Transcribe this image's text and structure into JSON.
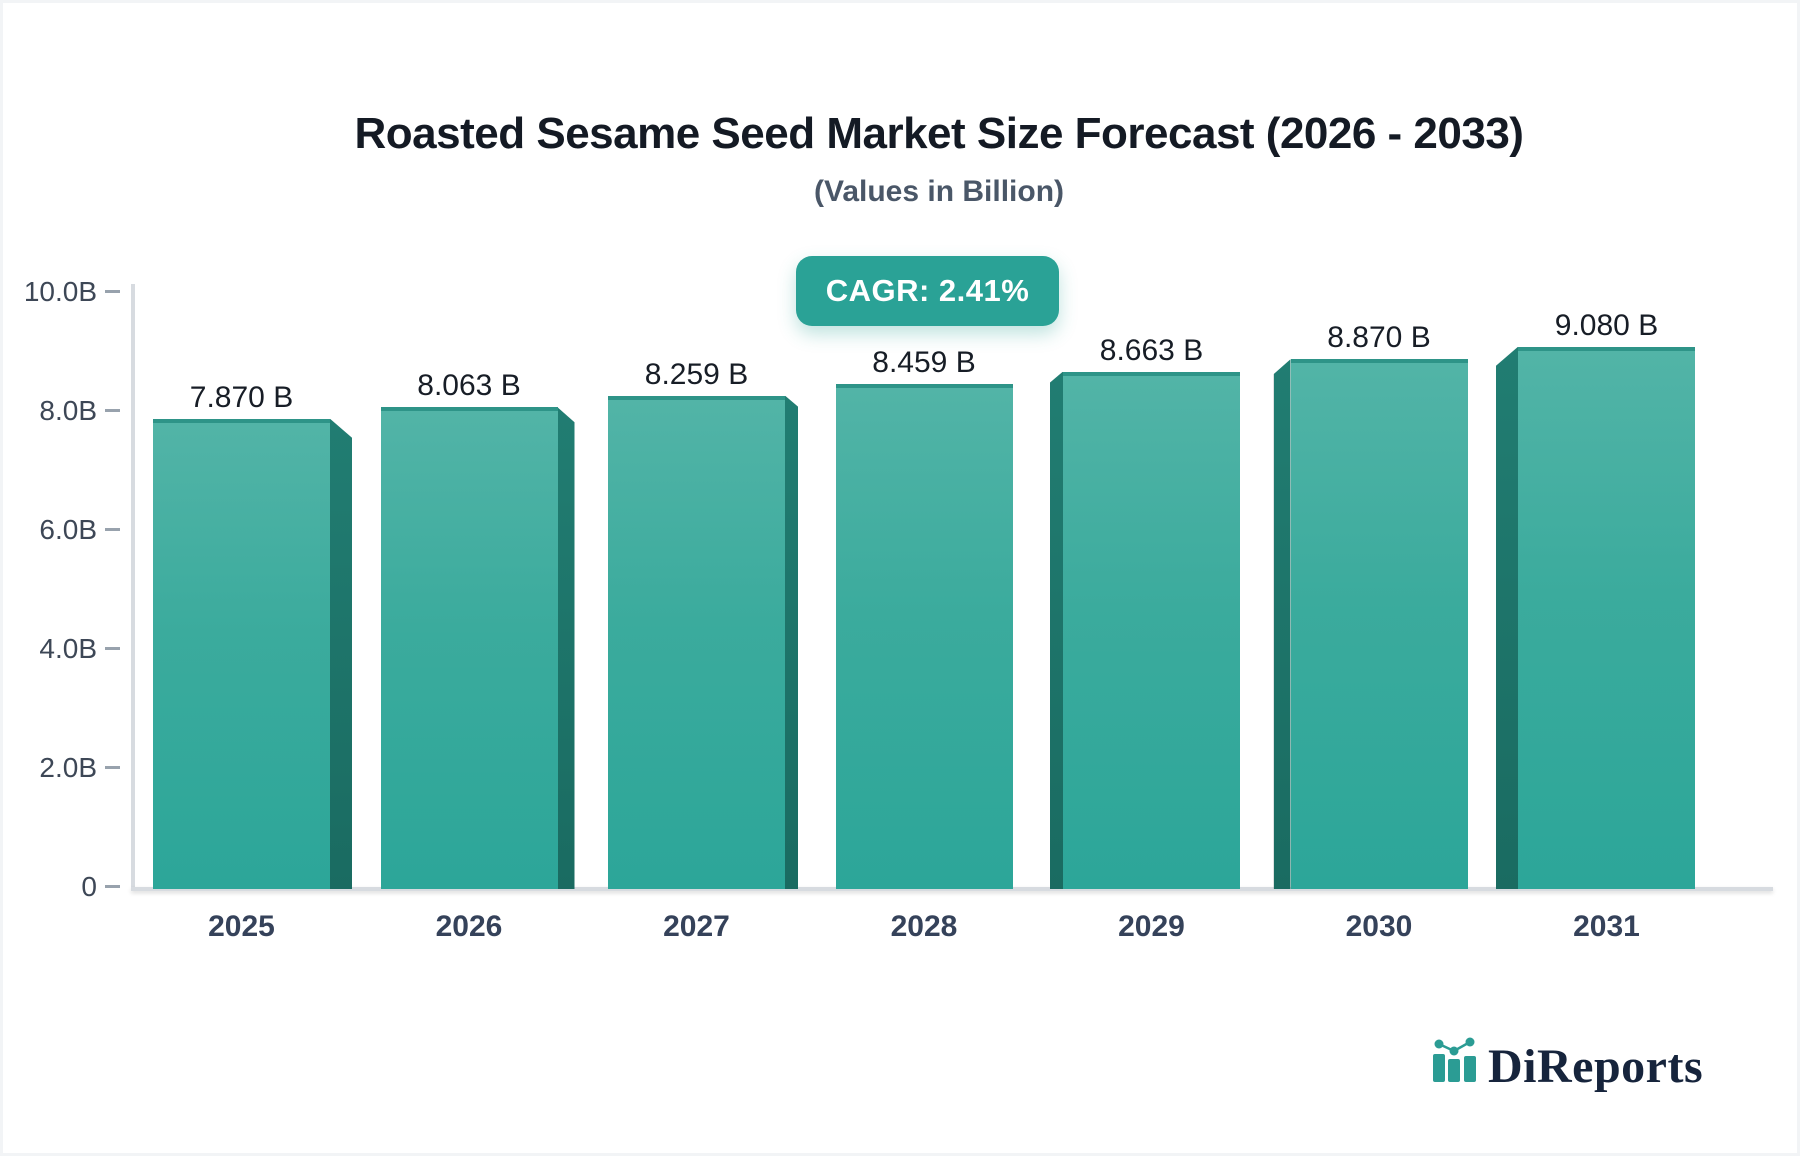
{
  "brand": {
    "name": "DiReports",
    "icon": "bar-chart-logo-icon"
  },
  "colors": {
    "bar_front_top": "#52b4a7",
    "bar_front_bottom": "#2ca699",
    "bar_side": "#1f7a6f",
    "badge_background": "#2aa296",
    "badge_text": "#ffffff",
    "logo_navy": "#16243c",
    "logo_teal": "#2b9c94",
    "axis_line": "#d7dbe0",
    "tick_text": "#3d4756",
    "year_text": "#35425a",
    "title_text": "#141a24",
    "subtitle_text": "#4a5768"
  },
  "chart_data": {
    "type": "bar",
    "title": "Roasted Sesame Seed Market Size Forecast (2026 - 2033)",
    "subtitle": "(Values in Billion)",
    "annotation": "CAGR: 2.41%",
    "categories": [
      "2025",
      "2026",
      "2027",
      "2028",
      "2029",
      "2030",
      "2031"
    ],
    "values": [
      7.87,
      8.063,
      8.259,
      8.459,
      8.663,
      8.87,
      9.08
    ],
    "value_labels": [
      "7.870 B",
      "8.063 B",
      "8.259 B",
      "8.459 B",
      "8.663 B",
      "8.870 B",
      "9.080 B"
    ],
    "y_ticks": [
      "10.0B",
      "8.0B",
      "6.0B",
      "4.0B",
      "2.0B",
      "0"
    ],
    "ylim": [
      0,
      10
    ],
    "xlabel": "",
    "ylabel": "",
    "grid": false,
    "legend": false,
    "style": "3d-perspective-bars"
  }
}
